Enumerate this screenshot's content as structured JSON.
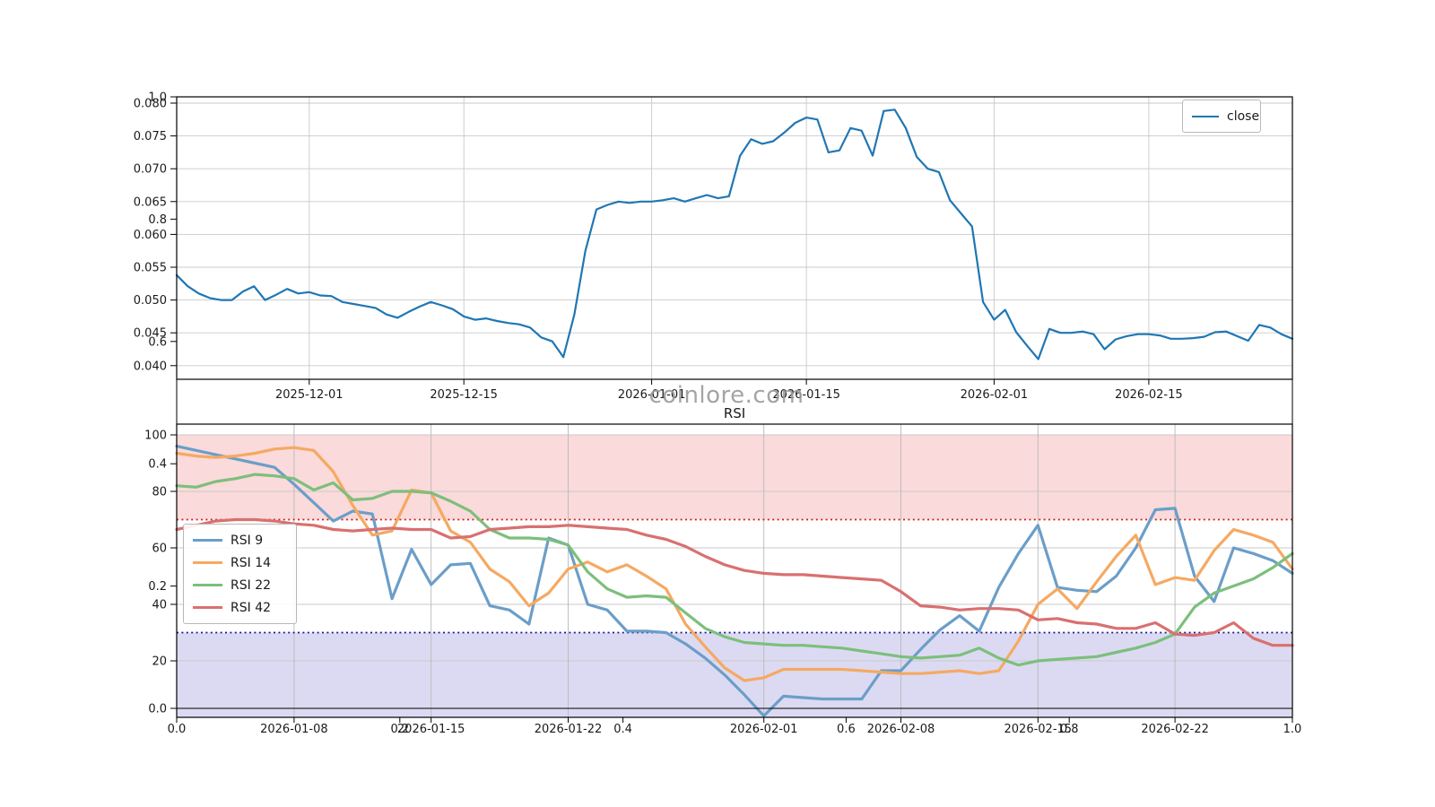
{
  "watermark": "coinlore.com",
  "colors": {
    "close": "#1f77b4",
    "rsi9": "#6b9ec9",
    "rsi14": "#f5a962",
    "rsi22": "#7cbf7c",
    "rsi42": "#d97070",
    "overbought_band": "#fadada",
    "oversold_band": "#dcdaf2",
    "overbought_line": "#cc1f1f",
    "oversold_line": "#1a1a99",
    "grid": "#c9c9c9",
    "spine": "#000000",
    "tick_text": "#1a1a1a",
    "watermark_color": "#9b9b9b"
  },
  "price_panel": {
    "legend": [
      {
        "label": "close"
      }
    ],
    "y_tick_labels": [
      "0.080",
      "0.075",
      "0.070",
      "0.065",
      "0.060",
      "0.055",
      "0.050",
      "0.045",
      "0.040"
    ],
    "y_tick_values": [
      0.08,
      0.075,
      0.07,
      0.065,
      0.06,
      0.055,
      0.05,
      0.045,
      0.04
    ],
    "x_ticks": [
      {
        "label": "2025-12-01",
        "day": 12
      },
      {
        "label": "2025-12-15",
        "day": 26
      },
      {
        "label": "2026-01-01",
        "day": 43
      },
      {
        "label": "2026-01-15",
        "day": 57
      },
      {
        "label": "2026-02-01",
        "day": 74
      },
      {
        "label": "2026-02-15",
        "day": 88
      }
    ]
  },
  "rsi_panel": {
    "title": "RSI",
    "legend": [
      {
        "label": "RSI 9"
      },
      {
        "label": "RSI 14"
      },
      {
        "label": "RSI 22"
      },
      {
        "label": "RSI 42"
      }
    ],
    "y_tick_labels": [
      "100",
      "80",
      "60",
      "40",
      "20"
    ],
    "y_tick_values": [
      100,
      80,
      60,
      40,
      20
    ],
    "x_ticks": [
      {
        "label": "2026-01-08",
        "day": 6
      },
      {
        "label": "2026-01-15",
        "day": 13
      },
      {
        "label": "2026-01-22",
        "day": 20
      },
      {
        "label": "2026-02-01",
        "day": 30
      },
      {
        "label": "2026-02-08",
        "day": 37
      },
      {
        "label": "2026-02-15",
        "day": 44
      },
      {
        "label": "2026-02-22",
        "day": 51
      }
    ],
    "overbought_level": 70,
    "oversold_level": 30
  },
  "overlay_axis": {
    "x_labels": [
      "0.0",
      "0.2",
      "0.4",
      "0.6",
      "0.8",
      "1.0"
    ],
    "y_labels": [
      "1.0",
      "0.8",
      "0.6",
      "0.4",
      "0.2",
      "0.0"
    ]
  },
  "chart_data": [
    {
      "type": "line",
      "panel": "price",
      "x_start_date": "2025-11-19",
      "x_freq": "daily",
      "x_tick_labels": [
        "2025-12-01",
        "2025-12-15",
        "2026-01-01",
        "2026-01-15",
        "2026-02-01",
        "2026-02-15"
      ],
      "ylim": [
        0.0379,
        0.081
      ],
      "y_ticks": [
        0.04,
        0.045,
        0.05,
        0.055,
        0.06,
        0.065,
        0.07,
        0.075,
        0.08
      ],
      "grid": true,
      "legend_position": "upper right",
      "series": [
        {
          "name": "close",
          "values": [
            0.0538,
            0.0521,
            0.051,
            0.0503,
            0.05,
            0.05,
            0.0513,
            0.0521,
            0.05,
            0.0508,
            0.0517,
            0.051,
            0.0512,
            0.0507,
            0.0506,
            0.0497,
            0.0494,
            0.0491,
            0.0488,
            0.0478,
            0.0473,
            0.0482,
            0.049,
            0.0497,
            0.0492,
            0.0486,
            0.0475,
            0.047,
            0.0472,
            0.0468,
            0.0465,
            0.0463,
            0.0458,
            0.0443,
            0.0437,
            0.0413,
            0.0478,
            0.0575,
            0.0638,
            0.0645,
            0.065,
            0.0648,
            0.065,
            0.065,
            0.0652,
            0.0655,
            0.065,
            0.0655,
            0.066,
            0.0655,
            0.0658,
            0.072,
            0.0745,
            0.0738,
            0.0742,
            0.0755,
            0.077,
            0.0778,
            0.0775,
            0.0725,
            0.0728,
            0.0762,
            0.0758,
            0.072,
            0.0788,
            0.079,
            0.0762,
            0.0718,
            0.07,
            0.0695,
            0.0652,
            0.0632,
            0.0612,
            0.0497,
            0.047,
            0.0485,
            0.0451,
            0.043,
            0.041,
            0.0456,
            0.045,
            0.045,
            0.0452,
            0.0448,
            0.0425,
            0.044,
            0.0445,
            0.0448,
            0.0448,
            0.0446,
            0.0441,
            0.0441,
            0.0442,
            0.0444,
            0.0451,
            0.0452,
            0.0445,
            0.0438,
            0.0462,
            0.0458,
            0.0448,
            0.0441
          ]
        }
      ]
    },
    {
      "type": "line",
      "panel": "rsi",
      "title": "RSI",
      "x_start_date": "2026-01-02",
      "x_freq": "daily",
      "x_tick_labels": [
        "2026-01-08",
        "2026-01-15",
        "2026-01-22",
        "2026-02-01",
        "2026-02-08",
        "2026-02-15",
        "2026-02-22"
      ],
      "ylim": [
        0,
        100
      ],
      "y_ticks": [
        20,
        40,
        60,
        80,
        100
      ],
      "grid": true,
      "overbought": 70,
      "oversold": 30,
      "legend_position": "left",
      "series": [
        {
          "name": "RSI 9",
          "values": [
            96,
            94.5,
            93,
            91.5,
            90,
            88.5,
            82.5,
            76,
            69.5,
            73,
            72,
            42,
            59.5,
            47,
            54,
            54.5,
            39.5,
            38,
            33,
            63.5,
            61,
            40,
            38,
            30.5,
            30.5,
            30,
            26,
            21,
            15,
            8,
            0.5,
            7.5,
            7,
            6.5,
            6.5,
            6.5,
            16.5,
            16.5,
            24,
            31,
            36,
            30.5,
            46,
            58,
            68,
            46,
            45,
            44.5,
            50,
            60,
            73.5,
            74,
            50,
            41,
            60,
            58,
            55.5,
            51
          ]
        },
        {
          "name": "RSI 14",
          "values": [
            93.5,
            92.5,
            92,
            92.5,
            93.5,
            95,
            95.5,
            94.5,
            87,
            75,
            64.5,
            66,
            80.5,
            79.5,
            66,
            62,
            52.5,
            48,
            39.5,
            44,
            52.5,
            55,
            51.5,
            54,
            50,
            45.5,
            33,
            25,
            17.5,
            13,
            14,
            17,
            17,
            17,
            17,
            16.5,
            16,
            15.5,
            15.5,
            16,
            16.5,
            15.5,
            16.5,
            27,
            40,
            45.5,
            38.5,
            48,
            57,
            64.5,
            47,
            49.5,
            48.5,
            59,
            66.5,
            64.5,
            62,
            52.5
          ]
        },
        {
          "name": "RSI 22",
          "values": [
            82,
            81.5,
            83.5,
            84.5,
            86,
            85.5,
            84.5,
            80.5,
            83,
            77,
            77.5,
            80,
            80,
            79.5,
            76.5,
            73,
            66.5,
            63.5,
            63.5,
            63,
            61,
            51.5,
            45.5,
            42.5,
            43,
            42.5,
            37,
            31.5,
            28.5,
            26.5,
            26,
            25.5,
            25.5,
            25,
            24.5,
            23.5,
            22.5,
            21.5,
            21,
            21.5,
            22,
            24.5,
            21,
            18.5,
            20,
            20.5,
            21,
            21.5,
            23,
            24.5,
            26.5,
            29.5,
            39,
            44,
            46.5,
            49,
            53,
            58
          ]
        },
        {
          "name": "RSI 42",
          "values": [
            66.5,
            68,
            69.5,
            70,
            70,
            69.5,
            68.5,
            68,
            66.5,
            66,
            66.5,
            67,
            66.5,
            66.5,
            63.5,
            64,
            66.5,
            67,
            67.5,
            67.5,
            68,
            67.5,
            67,
            66.5,
            64.5,
            63,
            60.5,
            57,
            54,
            52,
            51,
            50.5,
            50.5,
            50,
            49.5,
            49,
            48.5,
            44.5,
            39.5,
            39,
            38,
            38.5,
            38.5,
            38,
            34.5,
            35,
            33.5,
            33,
            31.5,
            31.5,
            33.5,
            29.5,
            29,
            30,
            33.5,
            28,
            25.5,
            25.5
          ]
        }
      ]
    }
  ]
}
